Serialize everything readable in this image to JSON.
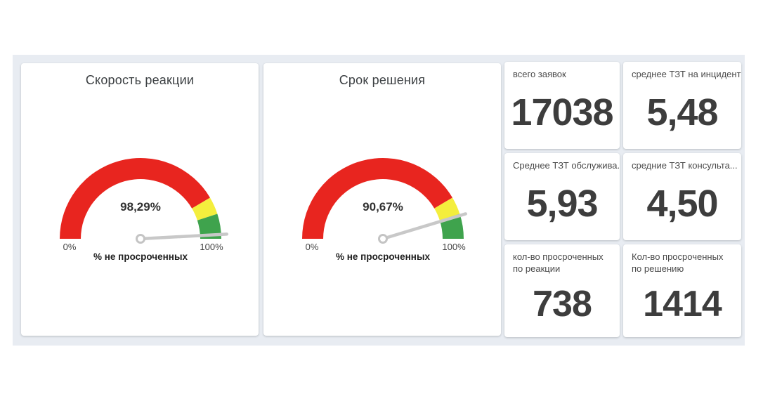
{
  "theme": {
    "page_bg": "#ffffff",
    "panel_bg": "#e8ecf2",
    "card_bg": "#ffffff",
    "title_color": "#3c4043",
    "number_color": "#3d3d3d",
    "label_color": "#4a4a4a",
    "needle_color": "#c8c8c8",
    "gauge_red": "#e8251f",
    "gauge_yellow": "#f4ee3d",
    "gauge_green": "#3fa34d"
  },
  "chart_data": [
    {
      "type": "gauge",
      "title": "Скорость реакции",
      "value": 98.29,
      "value_label": "98,29%",
      "range": [
        0,
        100
      ],
      "min_label": "0%",
      "max_label": "100%",
      "xlabel": "% не просроченных",
      "zones": [
        {
          "name": "red",
          "from": 0,
          "to": 83,
          "color": "#e8251f"
        },
        {
          "name": "yellow",
          "from": 83,
          "to": 90,
          "color": "#f4ee3d"
        },
        {
          "name": "green",
          "from": 90,
          "to": 100,
          "color": "#3fa34d"
        }
      ],
      "needle_color": "#c8c8c8"
    },
    {
      "type": "gauge",
      "title": "Срок решения",
      "value": 90.67,
      "value_label": "90,67%",
      "range": [
        0,
        100
      ],
      "min_label": "0%",
      "max_label": "100%",
      "xlabel": "% не просроченных",
      "zones": [
        {
          "name": "red",
          "from": 0,
          "to": 83,
          "color": "#e8251f"
        },
        {
          "name": "yellow",
          "from": 83,
          "to": 90,
          "color": "#f4ee3d"
        },
        {
          "name": "green",
          "from": 90,
          "to": 100,
          "color": "#3fa34d"
        }
      ],
      "needle_color": "#c8c8c8"
    },
    {
      "type": "scorecard",
      "label": "всего заявок",
      "value": "17038"
    },
    {
      "type": "scorecard",
      "label": "среднее ТЗТ на инцидент",
      "value": "5,48"
    },
    {
      "type": "scorecard",
      "label": "Среднее ТЗТ обслужива...",
      "value": "5,93"
    },
    {
      "type": "scorecard",
      "label": "средние ТЗТ консульта...",
      "value": "4,50"
    },
    {
      "type": "scorecard",
      "label": "кол-во просроченных по реакции",
      "value": "738"
    },
    {
      "type": "scorecard",
      "label": "Кол-во просроченных по решению",
      "value": "1414"
    }
  ]
}
